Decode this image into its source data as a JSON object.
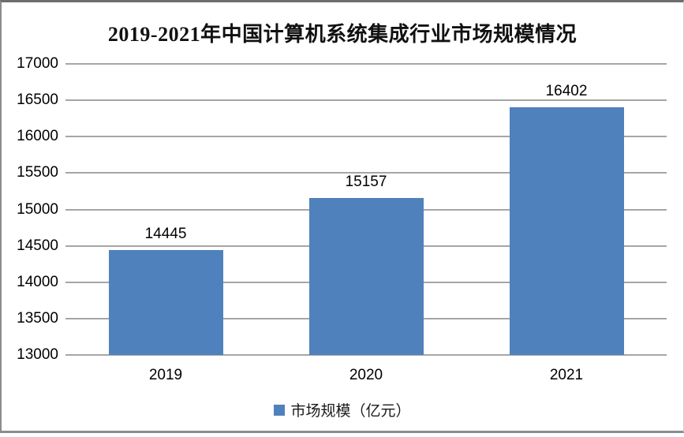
{
  "chart_data": {
    "type": "bar",
    "title": "2019-2021年中国计算机系统集成行业市场规模情况",
    "categories": [
      "2019",
      "2020",
      "2021"
    ],
    "values": [
      14445,
      15157,
      16402
    ],
    "data_labels": [
      "14445",
      "15157",
      "16402"
    ],
    "series": [
      {
        "name": "市场规模（亿元）",
        "values": [
          14445,
          15157,
          16402
        ]
      }
    ],
    "legend": "市场规模（亿元）",
    "legend_position": "bottom",
    "ylim": [
      13000,
      17000
    ],
    "ytick_step": 500,
    "yticks": [
      "17000",
      "16500",
      "16000",
      "15500",
      "15000",
      "14500",
      "14000",
      "13500",
      "13000"
    ],
    "grid": true,
    "xlabel": "",
    "ylabel": "",
    "bar_color": "#4f81bd",
    "gridline_color": "#a6a6a6"
  }
}
